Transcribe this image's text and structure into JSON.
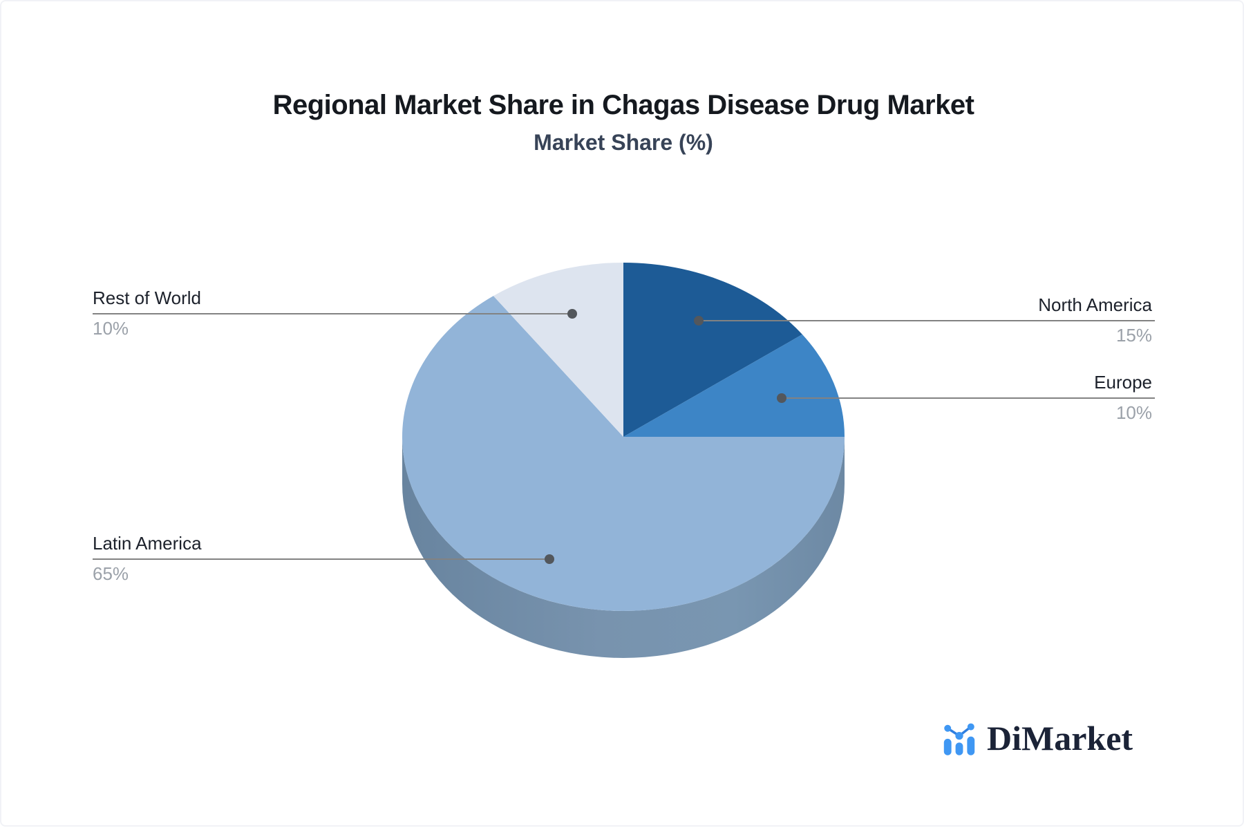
{
  "page": {
    "title": "Regional Market Share in Chagas Disease Drug Market",
    "subtitle": "Market Share (%)"
  },
  "brand": {
    "name": "DiMarket",
    "icon": "bar-line-chart-icon",
    "icon_color": "#3f97f3",
    "text_color": "#1b2337"
  },
  "chart_data": {
    "type": "pie",
    "style": "3d",
    "title": "Regional Market Share in Chagas Disease Drug Market",
    "subtitle": "Market Share (%)",
    "unit": "%",
    "direction": "clockwise",
    "start_angle_deg": 0,
    "legend_position": "callout-labels",
    "slices": [
      {
        "label": "North America",
        "value": 15,
        "display": "15%",
        "color": "#1d5b96"
      },
      {
        "label": "Europe",
        "value": 10,
        "display": "10%",
        "color": "#3d85c6"
      },
      {
        "label": "Latin America",
        "value": 65,
        "display": "65%",
        "color": "#92b4d8"
      },
      {
        "label": "Rest of World",
        "value": 10,
        "display": "10%",
        "color": "#dde4ef"
      }
    ],
    "side_color": "#7490ab",
    "label_color": "#1c212b",
    "value_color": "#9ba1a9",
    "line_color": "#828282",
    "dot_color": "#53575c"
  }
}
